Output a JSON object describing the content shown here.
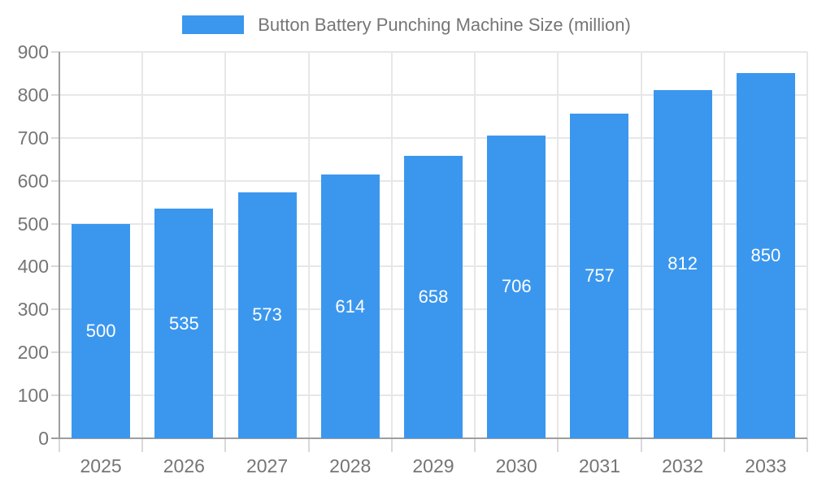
{
  "chart_data": {
    "type": "bar",
    "title": "Button Battery Punching Machine Size (million)",
    "categories": [
      "2025",
      "2026",
      "2027",
      "2028",
      "2029",
      "2030",
      "2031",
      "2032",
      "2033"
    ],
    "values": [
      500,
      535,
      573,
      614,
      658,
      706,
      757,
      812,
      850
    ],
    "xlabel": "",
    "ylabel": "",
    "ylim": [
      0,
      900
    ],
    "ytick_step": 100,
    "grid": "horizontal gridlines at every 100 and vertical gridlines at category boundaries",
    "legend_position": "top-center",
    "bar_labels_inside": true,
    "colors": {
      "bar": "#3b97ee",
      "axis_line": "#9e9e9e",
      "grid_line": "#e7e7e7",
      "tick": "#d9d9d9",
      "axis_label": "#757575",
      "bar_label": "#ffffff",
      "background": "#ffffff"
    }
  }
}
